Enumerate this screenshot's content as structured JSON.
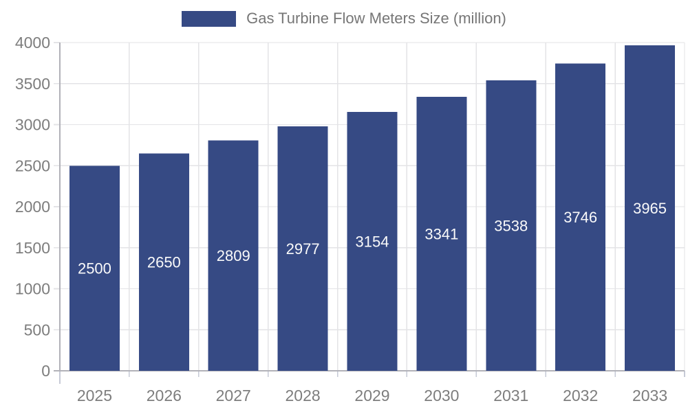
{
  "legend": {
    "label": "Gas Turbine Flow Meters Size (million)"
  },
  "chart_data": {
    "type": "bar",
    "title": "Gas Turbine Flow Meters Size (million)",
    "series_name": "Gas Turbine Flow Meters Size (million)",
    "categories": [
      "2025",
      "2026",
      "2027",
      "2028",
      "2029",
      "2030",
      "2031",
      "2032",
      "2033"
    ],
    "values": [
      2500,
      2650,
      2809,
      2977,
      3154,
      3341,
      3538,
      3746,
      3965
    ],
    "xlabel": "",
    "ylabel": "",
    "ylim": [
      0,
      4000
    ],
    "yticks": [
      0,
      500,
      1000,
      1500,
      2000,
      2500,
      3000,
      3500,
      4000
    ],
    "grid": true,
    "legend_position": "top-center",
    "bar_label_position": "inside-center",
    "colors": {
      "bar": "#364a84",
      "grid": "#e3e3e6",
      "axis": "#b1b1b8",
      "tick": "#c6cad6",
      "axis_text": "#7d7d7d",
      "bar_label_text": "#fafafa",
      "background": "#ffffff"
    }
  }
}
